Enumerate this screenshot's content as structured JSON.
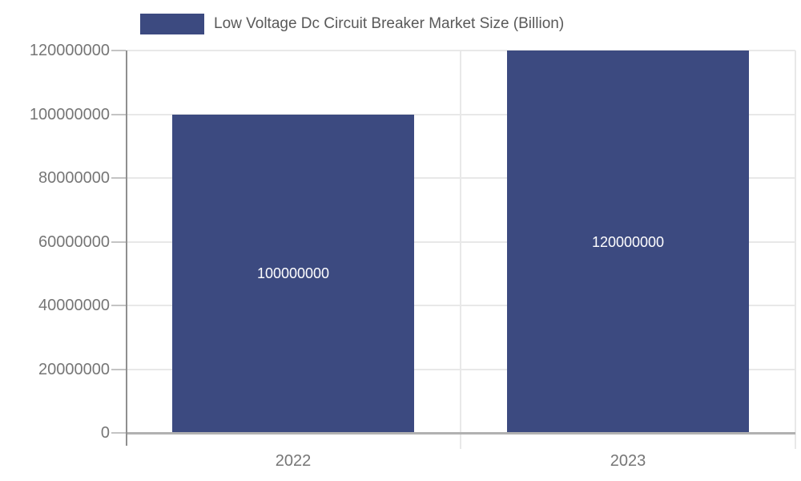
{
  "chart_data": {
    "type": "bar",
    "title": "Low Voltage Dc Circuit Breaker Market Size (Billion)",
    "categories": [
      "2022",
      "2023"
    ],
    "values": [
      100000000,
      120000000
    ],
    "value_labels": [
      "100000000",
      "120000000"
    ],
    "xlabel": "",
    "ylabel": "",
    "ylim": [
      0,
      120000000
    ],
    "ytick_interval": 20000000,
    "yticks": [
      0,
      20000000,
      40000000,
      60000000,
      80000000,
      100000000,
      120000000
    ],
    "ytick_labels": [
      "0",
      "20000000",
      "40000000",
      "60000000",
      "80000000",
      "100000000",
      "120000000"
    ],
    "legend_position": "top",
    "legend_entries": [
      "Low Voltage Dc Circuit Breaker Market Size (Billion)"
    ],
    "grid": true,
    "colors": {
      "bar": "#3c4a80",
      "bar_value_text": "#ffffff",
      "gridline": "#e8e8e8",
      "axis_spine": "#8f8f8f",
      "baseline": "#b1b1b1",
      "tick_label": "#767676",
      "legend_text": "#595959",
      "background": "#ffffff"
    }
  }
}
